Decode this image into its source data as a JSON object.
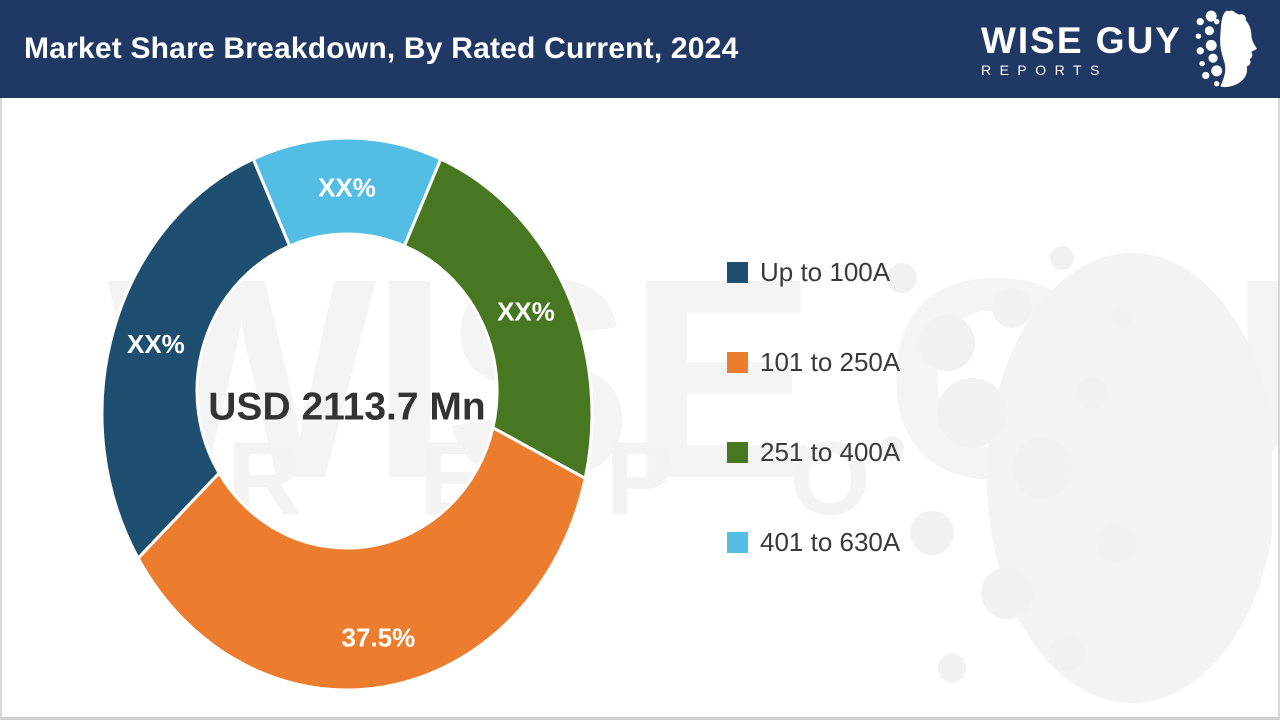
{
  "header": {
    "title": "Market Share Breakdown, By Rated Current, 2024",
    "logo": {
      "line1": "WISE GUY",
      "line2": "REPORTS",
      "head_icon": "dotted-face-profile"
    }
  },
  "watermark": {
    "line1": "WISE GUY",
    "line2": "REPORTS"
  },
  "chart_data": {
    "type": "pie",
    "subtype": "donut",
    "title": "Market Share Breakdown, By Rated Current, 2024",
    "center_label": "USD 2113.7 Mn",
    "legend_position": "right",
    "start_angle_deg": -22.5,
    "ring_order": [
      "401 to 630A",
      "251 to 400A",
      "101 to 250A",
      "Up to 100A"
    ],
    "slices": [
      {
        "label": "Up to 100A",
        "pct": 27.5,
        "display_pct": "XX%",
        "color": "#1F4F70"
      },
      {
        "label": "101 to 250A",
        "pct": 37.5,
        "display_pct": "37.5%",
        "color": "#ED7D2E"
      },
      {
        "label": "251 to 400A",
        "pct": 22.5,
        "display_pct": "XX%",
        "color": "#477821"
      },
      {
        "label": "401 to 630A",
        "pct": 12.5,
        "display_pct": "XX%",
        "color": "#54BDE4"
      }
    ],
    "colors": {
      "header_navy": "#203864",
      "slice_gap": "#ffffff",
      "center_text": "#333333",
      "legend_text": "#3a3a3a",
      "watermark_gray": "#f4f4f4"
    }
  }
}
